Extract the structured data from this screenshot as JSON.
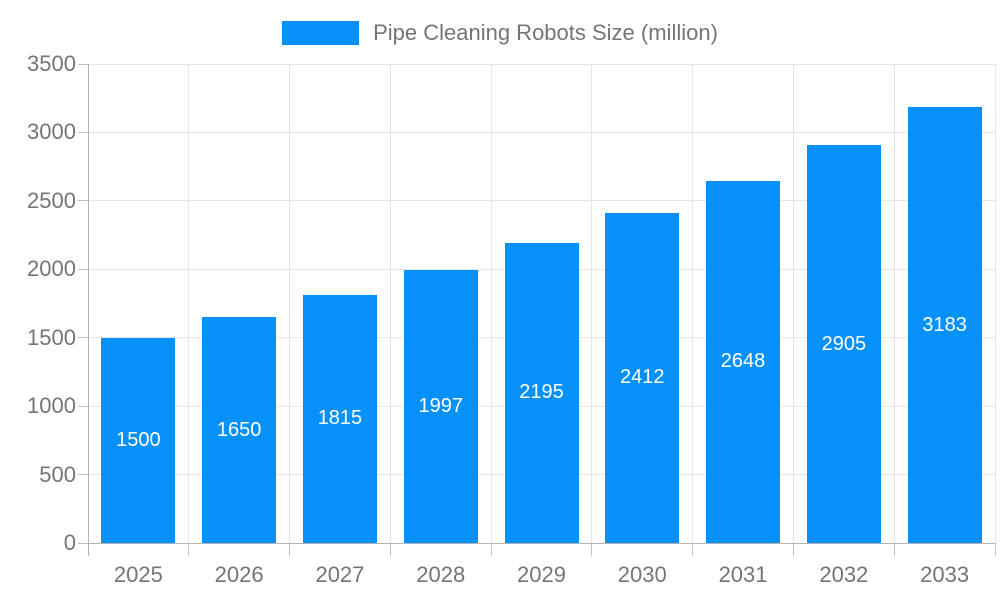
{
  "chart_data": {
    "type": "bar",
    "title": "Pipe Cleaning Robots Size (million)",
    "categories": [
      "2025",
      "2026",
      "2027",
      "2028",
      "2029",
      "2030",
      "2031",
      "2032",
      "2033"
    ],
    "values": [
      1500,
      1650,
      1815,
      1997,
      2195,
      2412,
      2648,
      2905,
      3183
    ],
    "xlabel": "",
    "ylabel": "",
    "ylim": [
      0,
      3500
    ],
    "ytick_step": 500,
    "yticks": [
      "0",
      "500",
      "1000",
      "1500",
      "2000",
      "2500",
      "3000",
      "3500"
    ],
    "grid": true,
    "legend_position": "top",
    "bar_label_position": "inside-center",
    "colors": {
      "bar": "#0691fa",
      "bar_label": "#ffffff",
      "axis_text": "#757575",
      "grid_line": "#e6e6e6",
      "axis_line": "#b3b3b3",
      "tick": "#c2c2c2",
      "background": "#ffffff"
    }
  }
}
